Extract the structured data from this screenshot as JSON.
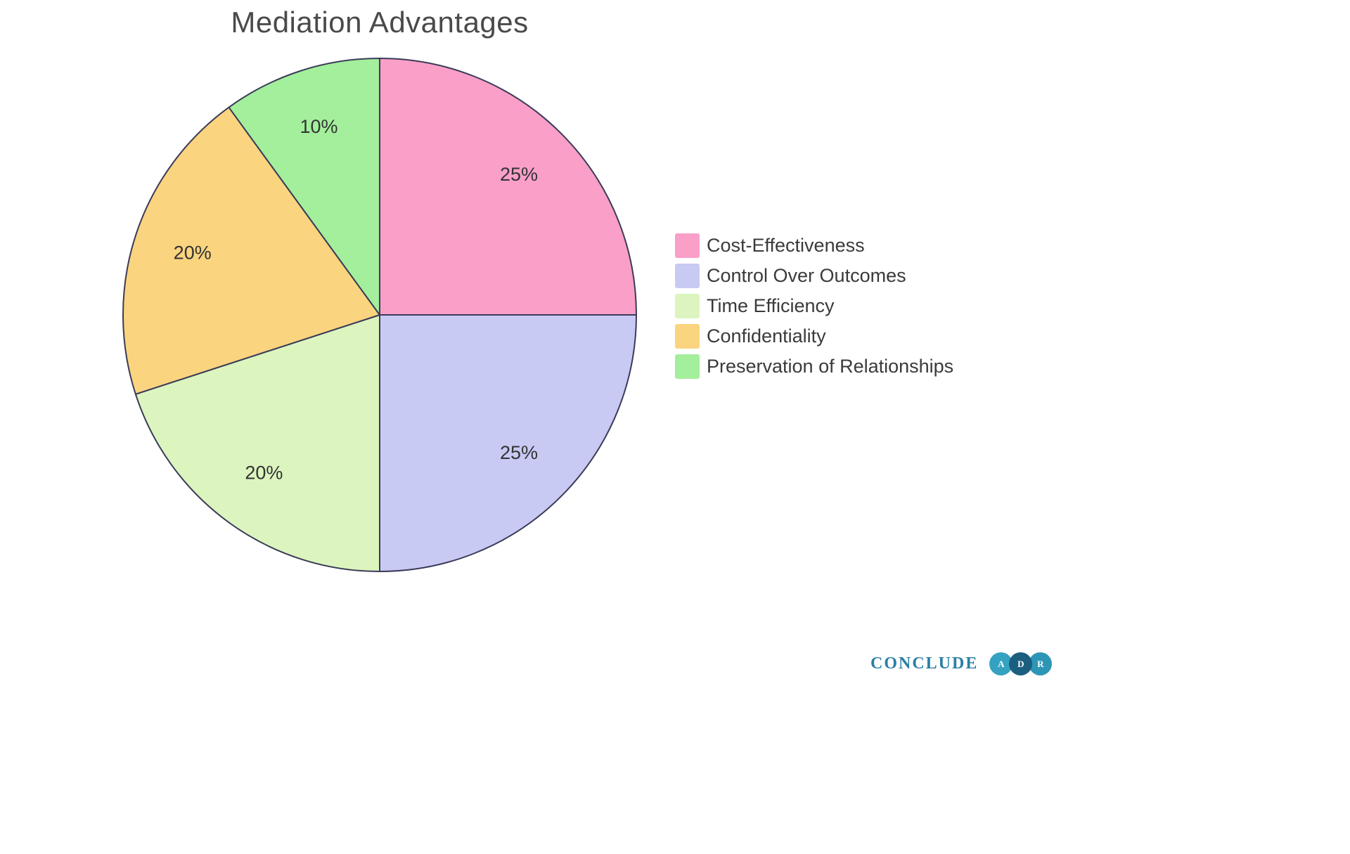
{
  "title": "Mediation Advantages",
  "chart_data": {
    "type": "pie",
    "title": "Mediation Advantages",
    "labels": [
      "Cost-Effectiveness",
      "Control Over Outcomes",
      "Time Efficiency",
      "Confidentiality",
      "Preservation of Relationships"
    ],
    "values": [
      25,
      25,
      20,
      20,
      10
    ],
    "percent_labels": [
      "25%",
      "25%",
      "20%",
      "20%",
      "10%"
    ],
    "colors": [
      "#FA9FC8",
      "#C8CAF4",
      "#DCF5BF",
      "#FAD47F",
      "#A3EF9C"
    ],
    "stroke_color": "#3B3B58",
    "start_angle": "top",
    "direction": "clockwise",
    "legend_position": "right",
    "labels_inside": true
  },
  "logo": {
    "wordmark": "CONCLUDE",
    "badges": [
      {
        "letter": "A",
        "color": "#35A2C1"
      },
      {
        "letter": "D",
        "color": "#1B5E7F"
      },
      {
        "letter": "R",
        "color": "#2E96B5"
      }
    ]
  }
}
